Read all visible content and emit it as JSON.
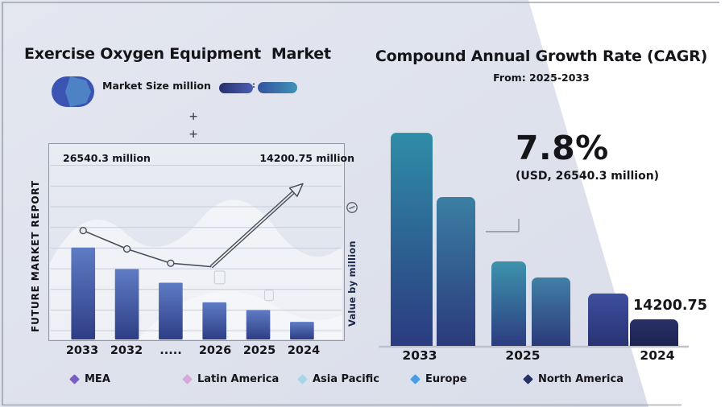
{
  "left_section": {
    "title": "Exercise Oxygen Equipment  Market",
    "legend_label": "Market Size million",
    "colon": ":",
    "plus_top": "+",
    "plus_bottom": "+",
    "side_label_left": "FUTURE MARKET REPORT",
    "side_label_right": "Value by million"
  },
  "right_section": {
    "title": "Compound Annual Growth Rate (CAGR)",
    "subtitle": "From: 2025-2033"
  },
  "legend": {
    "items": [
      {
        "label": "MEA",
        "color": "#7a5ec5"
      },
      {
        "label": "Latin America",
        "color": "#d5a8da"
      },
      {
        "label": "Asia Pacific",
        "color": "#a7d6e8"
      },
      {
        "label": "Europe",
        "color": "#4a9de2"
      },
      {
        "label": "North America",
        "color": "#283163"
      }
    ]
  },
  "chart_data": [
    {
      "type": "bar",
      "title": "Exercise Oxygen Equipment Market - Market Size million",
      "categories": [
        "2033",
        "2032",
        ".....",
        "2026",
        "2025",
        "2024"
      ],
      "bar_height_fraction": [
        0.47,
        0.36,
        0.29,
        0.19,
        0.15,
        0.09
      ],
      "start_value_label": "26540.3 million",
      "end_value_label": "14200.75 million",
      "ylabel": "Value by million",
      "line_points": [
        [
          0,
          0.557
        ],
        [
          1,
          0.463
        ],
        [
          2,
          0.39
        ],
        [
          2.93,
          0.372
        ]
      ],
      "arrow_tip": [
        5.02,
        0.797
      ],
      "bar_color_top": "#5e7cc4",
      "bar_color_bottom": "#2e3d85",
      "grid": "horizontal"
    },
    {
      "type": "bar",
      "title": "Compound Annual Growth Rate (CAGR)",
      "categories": [
        "2033",
        "2025",
        "2024"
      ],
      "annotation": "7.8%",
      "annotation_detail": "(USD, 26540.3 million)",
      "value_label": "14200.75",
      "groups": [
        {
          "label": "2033",
          "bars": [
            {
              "height_fraction": 0.981,
              "color_top": "#2f8da7",
              "color_bottom": "#2b3b80"
            },
            {
              "height_fraction": 0.685,
              "color_top": "#3a7fa3",
              "color_bottom": "#2b3a7c"
            }
          ]
        },
        {
          "label": "2025",
          "bars": [
            {
              "height_fraction": 0.389,
              "color_top": "#3d93ad",
              "color_bottom": "#2c3c80"
            },
            {
              "height_fraction": 0.315,
              "color_top": "#4180a6",
              "color_bottom": "#2c3a7a"
            }
          ]
        },
        {
          "label": "2024",
          "bars": [
            {
              "height_fraction": 0.241,
              "color_top": "#3e4f9f",
              "color_bottom": "#283273"
            },
            {
              "height_fraction": 0.122,
              "color_top": "#283067",
              "color_bottom": "#1d2452"
            }
          ]
        }
      ]
    }
  ]
}
